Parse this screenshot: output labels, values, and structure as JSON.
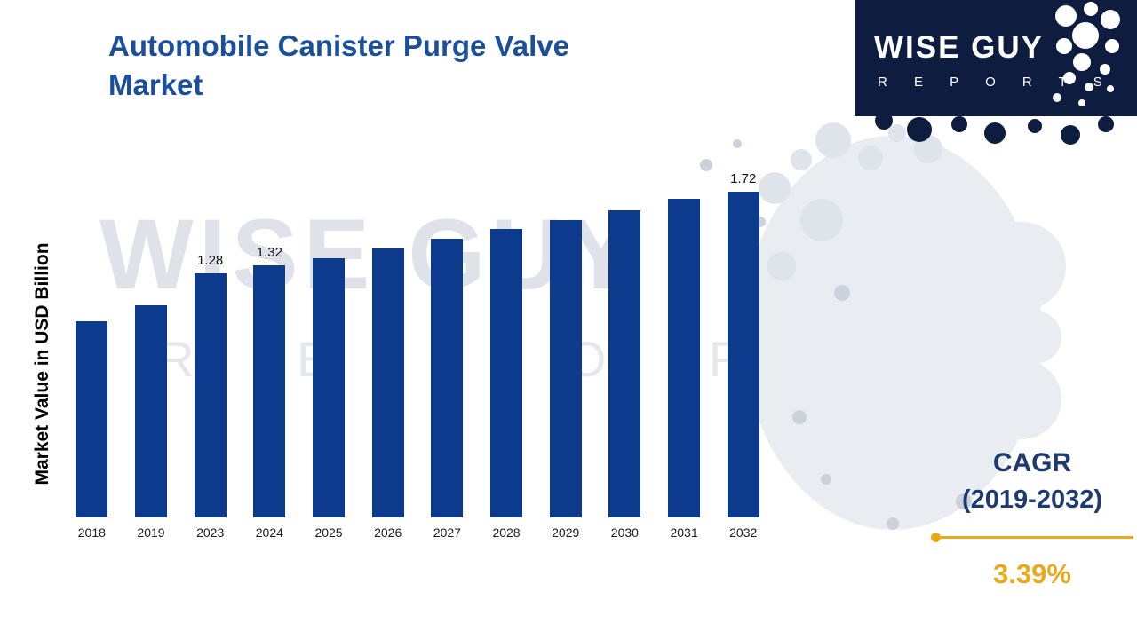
{
  "header": {
    "title_line1": "Automobile Canister Purge Valve",
    "title_line2": "Market"
  },
  "watermark": {
    "line1": "WISE GUY",
    "line2": "R E P O R T S"
  },
  "logo": {
    "name_line": "WISE GUY",
    "reports_line": "R E P O R T S",
    "background_color": "#0d1c3f"
  },
  "cagr": {
    "label": "CAGR",
    "range": "(2019-2032)",
    "value": "3.39%",
    "accent_color": "#e9a91c",
    "text_color": "#1e3a6e"
  },
  "chart_data": {
    "type": "bar",
    "title": "Automobile Canister Purge Valve Market",
    "xlabel": "",
    "ylabel": "Market Value in USD Billion",
    "categories": [
      "2018",
      "2019",
      "2023",
      "2024",
      "2025",
      "2026",
      "2027",
      "2028",
      "2029",
      "2030",
      "2031",
      "2032"
    ],
    "values": [
      1.03,
      1.11,
      1.28,
      1.32,
      1.36,
      1.41,
      1.46,
      1.51,
      1.56,
      1.61,
      1.67,
      1.72
    ],
    "point_labels": [
      "",
      "",
      "1.28",
      "1.32",
      "",
      "",
      "",
      "",
      "",
      "",
      "",
      "1.72"
    ],
    "ylim": [
      0,
      2
    ],
    "grid": false,
    "legend": false,
    "bar_color": "#0c3b8d"
  }
}
